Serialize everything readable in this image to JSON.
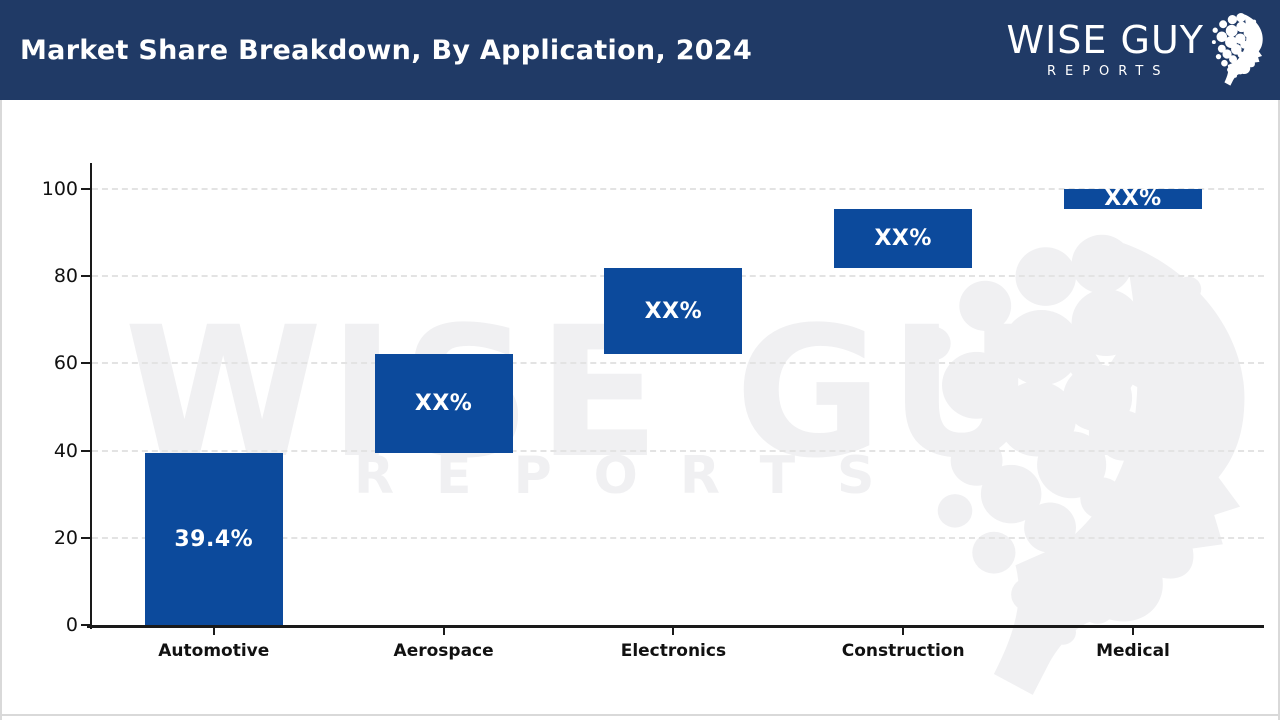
{
  "header": {
    "title": "Market Share Breakdown, By Application, 2024"
  },
  "logo": {
    "line1": "WISE GUY",
    "line2": "REPORTS"
  },
  "watermark": {
    "line1": "WISE GUY",
    "line2": "REPORTS"
  },
  "chart_data": {
    "type": "bar",
    "subtype": "waterfall",
    "title": "Market Share Breakdown, By Application, 2024",
    "categories": [
      "Automotive",
      "Aerospace",
      "Electronics",
      "Construction",
      "Medical"
    ],
    "segments": [
      {
        "category": "Automotive",
        "start": 0,
        "end": 39.4,
        "value": 39.4,
        "label": "39.4%"
      },
      {
        "category": "Aerospace",
        "start": 39.4,
        "end": 62.2,
        "value": 22.8,
        "label": "XX%"
      },
      {
        "category": "Electronics",
        "start": 62.2,
        "end": 81.8,
        "value": 19.6,
        "label": "XX%"
      },
      {
        "category": "Construction",
        "start": 81.8,
        "end": 95.5,
        "value": 13.7,
        "label": "XX%"
      },
      {
        "category": "Medical",
        "start": 95.5,
        "end": 100,
        "value": 4.5,
        "label": "XX%"
      }
    ],
    "yticks": [
      0,
      20,
      40,
      60,
      80,
      100
    ],
    "ytick_labels": [
      "0",
      "20",
      "40",
      "60",
      "80",
      "100"
    ],
    "ylim": [
      0,
      106
    ],
    "xlabel": "",
    "ylabel": "",
    "grid": "horizontal-dashed",
    "legend": "none",
    "bar_color": "#0C4A9C",
    "bar_label_color": "#ffffff"
  },
  "colors": {
    "header_bg": "#203A66",
    "bar": "#0C4A9C",
    "watermark": "#f0f0f2",
    "grid": "#e3e3e3",
    "axis": "#1a1a1a"
  }
}
